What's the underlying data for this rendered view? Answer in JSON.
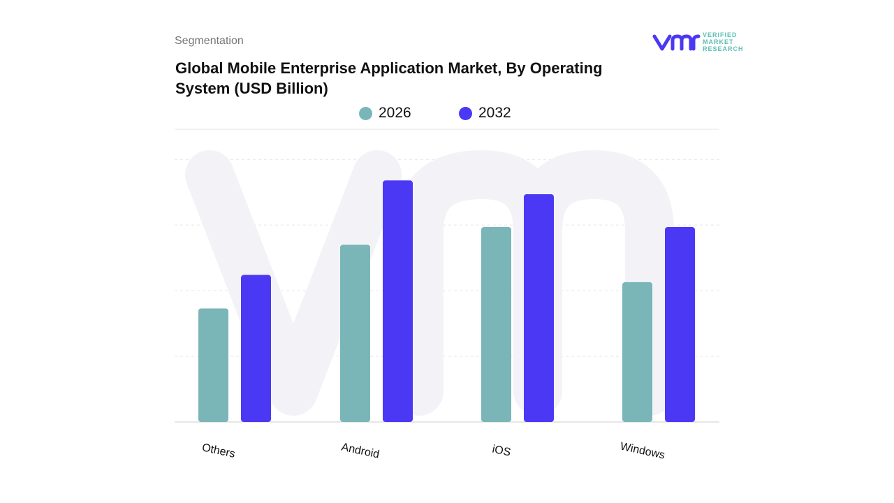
{
  "header": {
    "segment_label": "Segmentation",
    "brand": {
      "mark": "vmr",
      "line1": "VERIFIED",
      "line2": "MARKET",
      "line3": "RESEARCH"
    }
  },
  "colors": {
    "s2026": "#7ab5b8",
    "s2032": "#4b38f5",
    "grid": "#e6e6e6"
  },
  "chart_data": {
    "type": "bar",
    "title": "Global Mobile Enterprise Application Market, By Operating System (USD Billion)",
    "xlabel": "",
    "ylabel": "",
    "categories": [
      "Others",
      "Android",
      "iOS",
      "Windows"
    ],
    "series": [
      {
        "name": "2026",
        "values": [
          1.73,
          2.7,
          2.97,
          2.13
        ]
      },
      {
        "name": "2032",
        "values": [
          2.24,
          3.68,
          3.47,
          2.97
        ]
      }
    ],
    "ylim": [
      0,
      4.46
    ],
    "grid": true,
    "legend": "top-center"
  }
}
